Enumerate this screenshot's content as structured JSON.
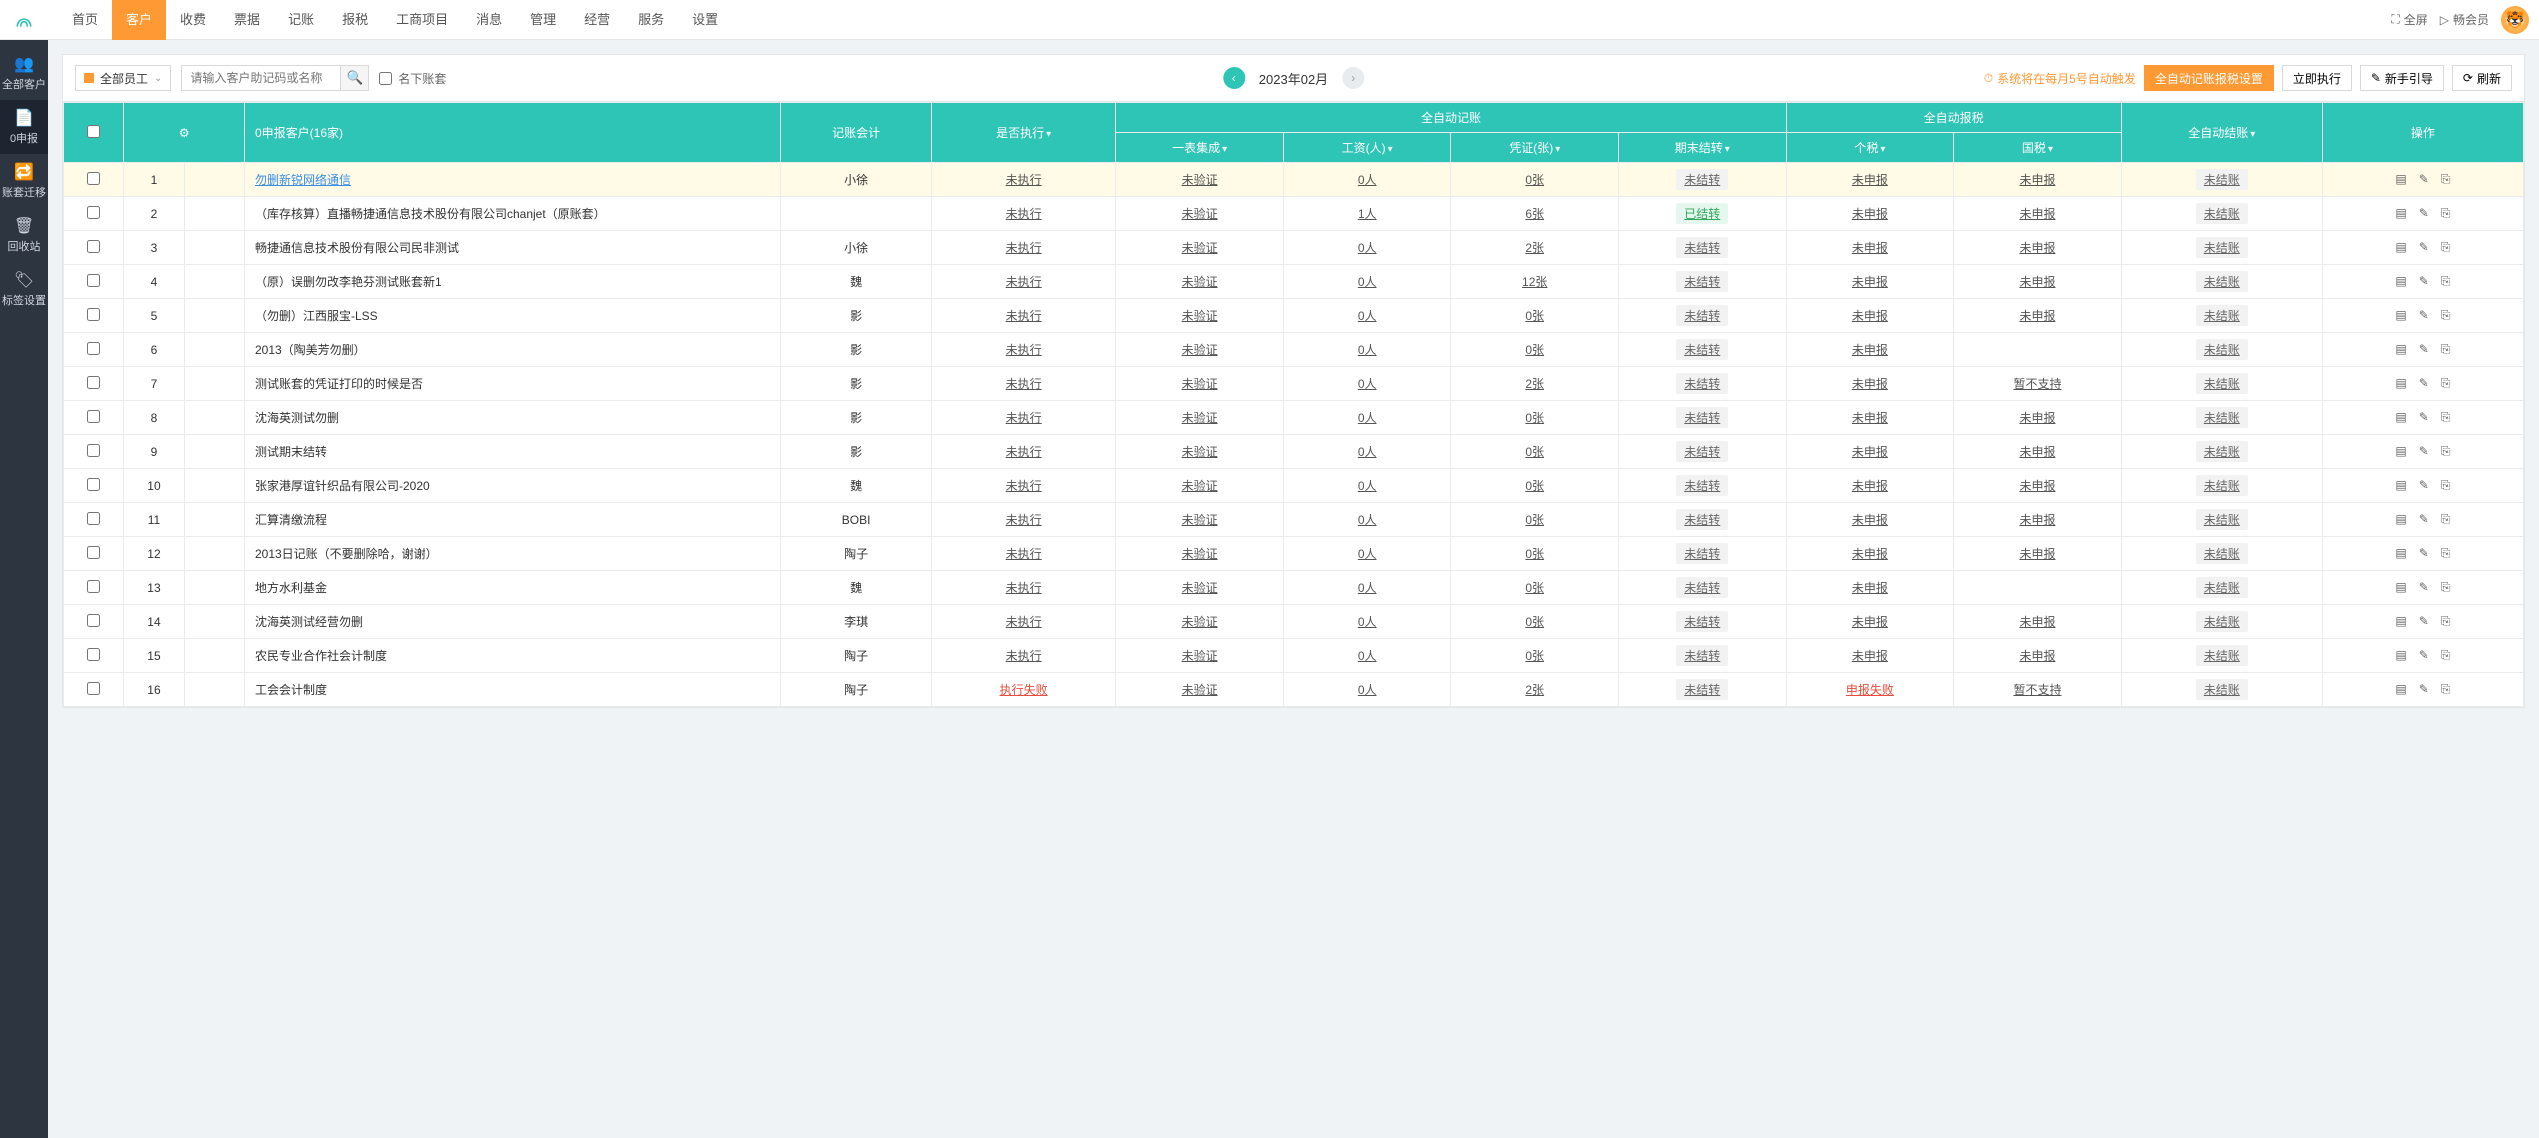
{
  "topnav": {
    "items": [
      "首页",
      "客户",
      "收费",
      "票据",
      "记账",
      "报税",
      "工商项目",
      "消息",
      "管理",
      "经营",
      "服务",
      "设置"
    ],
    "active_index": 1,
    "right": {
      "fullscreen": "全屏",
      "member": "畅会员"
    }
  },
  "sidebar": {
    "items": [
      {
        "icon": "👥",
        "label": "全部客户"
      },
      {
        "icon": "📄",
        "label": "0申报"
      },
      {
        "icon": "🔁",
        "label": "账套迁移"
      },
      {
        "icon": "🗑",
        "label": "回收站"
      },
      {
        "icon": "🏷",
        "label": "标签设置"
      }
    ],
    "active_index": 1
  },
  "toolbar": {
    "staff_select": "全部员工",
    "search_placeholder": "请输入客户助记码或名称",
    "chk_label": "名下账套",
    "month": "2023年02月",
    "warn": "系统将在每月5号自动触发",
    "btn_primary": "全自动记账报税设置",
    "btn_exec": "立即执行",
    "btn_guide": "新手引导",
    "btn_refresh": "刷新"
  },
  "table": {
    "header": {
      "name": "0申报客户(16家)",
      "accountant": "记账会计",
      "exec": "是否执行",
      "group_auto_acc": "全自动记账",
      "group_auto_tax": "全自动报税",
      "auto_settle": "全自动结账",
      "ops": "操作",
      "sub": {
        "integrate": "一表集成",
        "salary": "工资(人)",
        "voucher": "凭证(张)",
        "period_end": "期末结转",
        "personal_tax": "个税",
        "national_tax": "国税"
      }
    },
    "rows": [
      {
        "idx": 1,
        "name": "勿删新锐网络通信",
        "name_link": true,
        "accountant": "小徐",
        "exec": "未执行",
        "integrate": "未验证",
        "salary": "0人",
        "voucher": "0张",
        "period_end": "未结转",
        "ptax": "未申报",
        "ntax": "未申报",
        "settle": "未结账",
        "highlight": true
      },
      {
        "idx": 2,
        "name": "（库存核算）直播畅捷通信息技术股份有限公司chanjet（原账套）",
        "accountant": "",
        "exec": "未执行",
        "integrate": "未验证",
        "salary": "1人",
        "voucher": "6张",
        "period_end": "已结转",
        "period_end_style": "green",
        "ptax": "未申报",
        "ntax": "未申报",
        "settle": "未结账"
      },
      {
        "idx": 3,
        "name": "畅捷通信息技术股份有限公司民非测试",
        "accountant": "小徐",
        "exec": "未执行",
        "integrate": "未验证",
        "salary": "0人",
        "voucher": "2张",
        "period_end": "未结转",
        "ptax": "未申报",
        "ntax": "未申报",
        "settle": "未结账"
      },
      {
        "idx": 4,
        "name": "（原）误删勿改李艳芬测试账套新1",
        "accountant": "魏",
        "exec": "未执行",
        "integrate": "未验证",
        "salary": "0人",
        "voucher": "12张",
        "period_end": "未结转",
        "ptax": "未申报",
        "ntax": "未申报",
        "settle": "未结账"
      },
      {
        "idx": 5,
        "name": "（勿删）江西服宝-LSS",
        "accountant": "影",
        "exec": "未执行",
        "integrate": "未验证",
        "salary": "0人",
        "voucher": "0张",
        "period_end": "未结转",
        "ptax": "未申报",
        "ntax": "未申报",
        "settle": "未结账"
      },
      {
        "idx": 6,
        "name": "2013（陶美芳勿删）",
        "accountant": "影",
        "exec": "未执行",
        "integrate": "未验证",
        "salary": "0人",
        "voucher": "0张",
        "period_end": "未结转",
        "ptax": "未申报",
        "ntax": "",
        "settle": "未结账"
      },
      {
        "idx": 7,
        "name": "测试账套的凭证打印的时候是否",
        "accountant": "影",
        "exec": "未执行",
        "integrate": "未验证",
        "salary": "0人",
        "voucher": "2张",
        "period_end": "未结转",
        "ptax": "未申报",
        "ntax": "暂不支持",
        "ntax_plain": true,
        "settle": "未结账"
      },
      {
        "idx": 8,
        "name": "沈海英测试勿删",
        "accountant": "影",
        "exec": "未执行",
        "integrate": "未验证",
        "salary": "0人",
        "voucher": "0张",
        "period_end": "未结转",
        "ptax": "未申报",
        "ntax": "未申报",
        "settle": "未结账"
      },
      {
        "idx": 9,
        "name": "测试期末结转",
        "accountant": "影",
        "exec": "未执行",
        "integrate": "未验证",
        "salary": "0人",
        "voucher": "0张",
        "period_end": "未结转",
        "ptax": "未申报",
        "ntax": "未申报",
        "settle": "未结账"
      },
      {
        "idx": 10,
        "name": "张家港厚谊针织品有限公司-2020",
        "accountant": "魏",
        "exec": "未执行",
        "integrate": "未验证",
        "salary": "0人",
        "voucher": "0张",
        "period_end": "未结转",
        "ptax": "未申报",
        "ntax": "未申报",
        "settle": "未结账"
      },
      {
        "idx": 11,
        "name": "汇算清缴流程",
        "accountant": "BOBI",
        "exec": "未执行",
        "integrate": "未验证",
        "salary": "0人",
        "voucher": "0张",
        "period_end": "未结转",
        "ptax": "未申报",
        "ntax": "未申报",
        "settle": "未结账"
      },
      {
        "idx": 12,
        "name": "2013日记账（不要删除哈，谢谢）",
        "accountant": "陶子",
        "exec": "未执行",
        "integrate": "未验证",
        "salary": "0人",
        "voucher": "0张",
        "period_end": "未结转",
        "ptax": "未申报",
        "ntax": "未申报",
        "settle": "未结账"
      },
      {
        "idx": 13,
        "name": "地方水利基金",
        "accountant": "魏",
        "exec": "未执行",
        "integrate": "未验证",
        "salary": "0人",
        "voucher": "0张",
        "period_end": "未结转",
        "ptax": "未申报",
        "ntax": "",
        "settle": "未结账"
      },
      {
        "idx": 14,
        "name": "沈海英测试经营勿删",
        "accountant": "李琪",
        "exec": "未执行",
        "integrate": "未验证",
        "salary": "0人",
        "voucher": "0张",
        "period_end": "未结转",
        "ptax": "未申报",
        "ntax": "未申报",
        "settle": "未结账"
      },
      {
        "idx": 15,
        "name": "农民专业合作社会计制度",
        "accountant": "陶子",
        "exec": "未执行",
        "integrate": "未验证",
        "salary": "0人",
        "voucher": "0张",
        "period_end": "未结转",
        "ptax": "未申报",
        "ntax": "未申报",
        "settle": "未结账"
      },
      {
        "idx": 16,
        "name": "工会会计制度",
        "accountant": "陶子",
        "exec": "执行失败",
        "exec_style": "red",
        "integrate": "未验证",
        "salary": "0人",
        "voucher": "2张",
        "period_end": "未结转",
        "ptax": "申报失败",
        "ptax_style": "red",
        "ntax": "暂不支持",
        "ntax_plain": true,
        "settle": "未结账"
      }
    ]
  },
  "colors": {
    "teal": "#2ec4b6",
    "orange": "#ff9933",
    "sidebar": "#2d3540",
    "red": "#e74c3c",
    "link": "#3a8ee6"
  }
}
